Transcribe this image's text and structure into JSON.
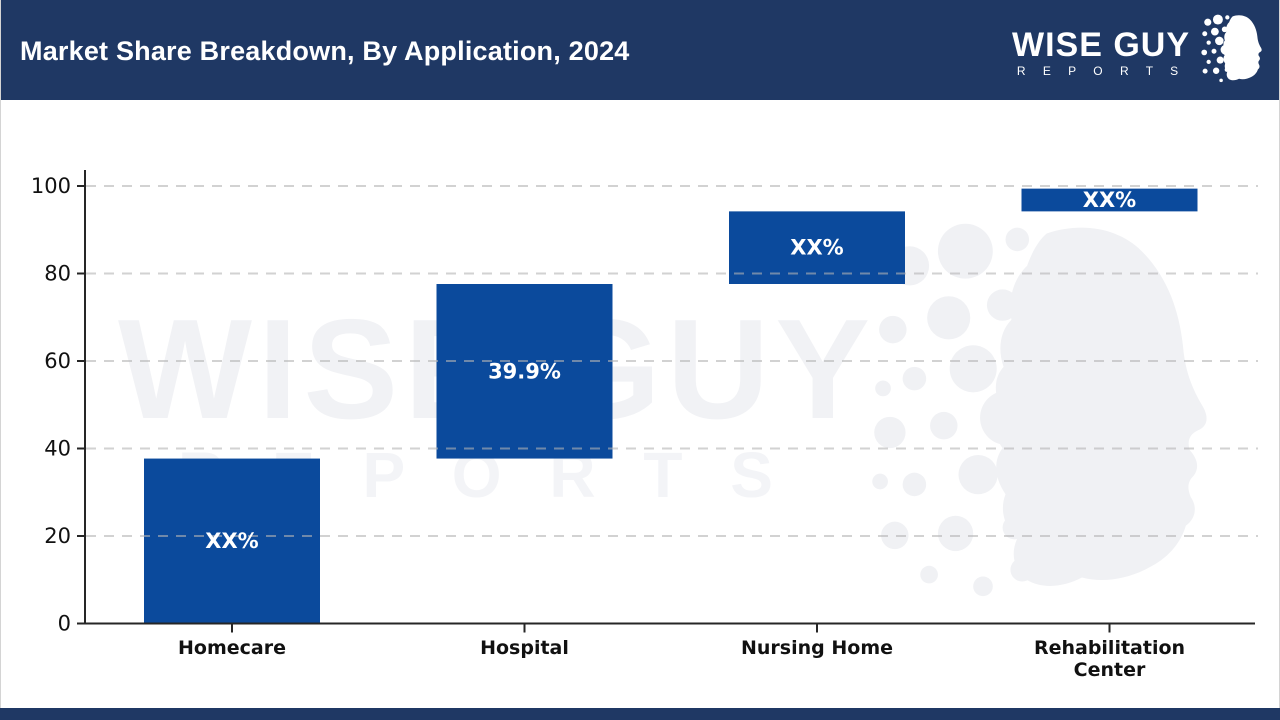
{
  "header": {
    "title": "Market Share Breakdown, By Application, 2024",
    "background_color": "#1f3864",
    "logo": {
      "line1": "WISE GUY",
      "line2": "R E P O R T S"
    }
  },
  "watermark": {
    "line1": "WISE GUY",
    "line2": "R E P O R T S"
  },
  "chart_data": {
    "type": "bar",
    "subtype": "floating-segment-waterfall",
    "title": "Market Share Breakdown, By Application, 2024",
    "categories": [
      "Homecare",
      "Hospital",
      "Nursing Home",
      "Rehabilitation Center"
    ],
    "category_label_lines": [
      [
        "Homecare"
      ],
      [
        "Hospital"
      ],
      [
        "Nursing Home"
      ],
      [
        "Rehabilitation",
        "Center"
      ]
    ],
    "segments": [
      {
        "category": "Homecare",
        "start": 0,
        "end": 37.7,
        "label": "XX%"
      },
      {
        "category": "Hospital",
        "start": 37.7,
        "end": 77.6,
        "label": "39.9%"
      },
      {
        "category": "Nursing Home",
        "start": 77.6,
        "end": 94.2,
        "label": "XX%"
      },
      {
        "category": "Rehabilitation Center",
        "start": 94.2,
        "end": 99.4,
        "label": "XX%"
      }
    ],
    "known_values": {
      "Hospital": 39.9
    },
    "unlabeled_placeholder": "XX%",
    "xlabel": "",
    "ylabel": "",
    "ylim": [
      0,
      100
    ],
    "yticks": [
      0,
      20,
      40,
      60,
      80,
      100
    ],
    "grid": {
      "horizontal": true,
      "style": "dashed",
      "color": "#d9d9d9"
    },
    "legend": "none",
    "bar_color": "#0b4a9c",
    "bar_label_color": "#ffffff",
    "axis_color": "#262626",
    "tick_label_color": "#111111"
  },
  "footer": {
    "background_color": "#1f3864"
  }
}
